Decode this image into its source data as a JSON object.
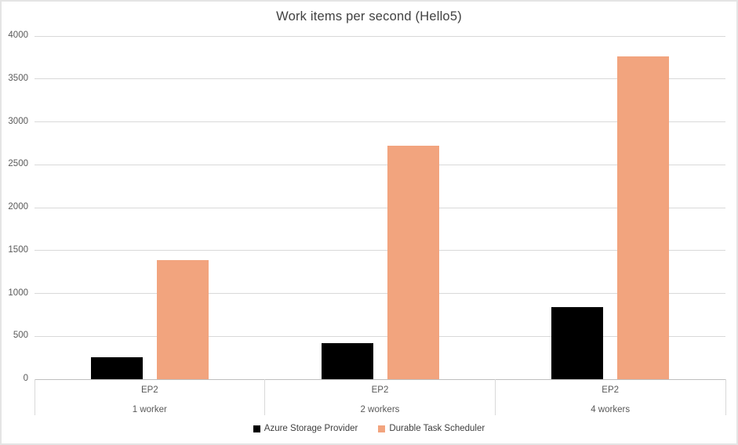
{
  "chart_data": {
    "type": "bar",
    "title": "Work items per second (Hello5)",
    "categories": [
      {
        "line1": "EP2",
        "line2": "1 worker"
      },
      {
        "line1": "EP2",
        "line2": "2 workers"
      },
      {
        "line1": "EP2",
        "line2": "4 workers"
      }
    ],
    "series": [
      {
        "name": "Azure Storage Provider",
        "color": "#000000",
        "values": [
          260,
          420,
          840
        ]
      },
      {
        "name": "Durable Task Scheduler",
        "color": "#F2A47E",
        "values": [
          1390,
          2720,
          3760
        ]
      }
    ],
    "ylim": [
      0,
      4000
    ],
    "ytick_step": 500,
    "yticks": [
      0,
      500,
      1000,
      1500,
      2000,
      2500,
      3000,
      3500,
      4000
    ],
    "grid": "horizontal",
    "legend_position": "bottom",
    "style_colors": {
      "gridline": "#d9d9d9",
      "axis_line": "#bfbfbf",
      "tick_text": "#595959",
      "title_text": "#414141",
      "chart_border": "#e4e4e4"
    }
  }
}
